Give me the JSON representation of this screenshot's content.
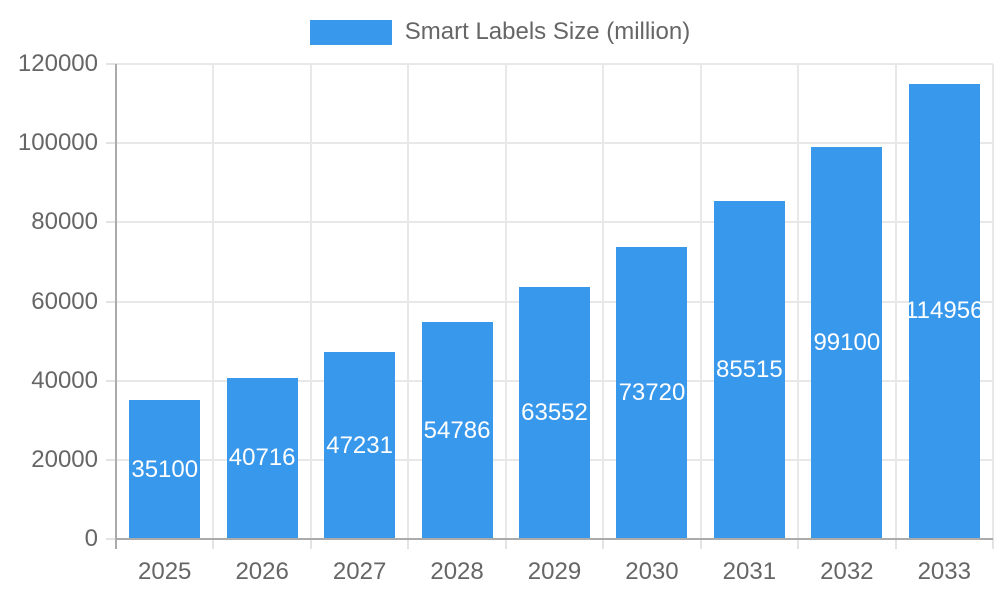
{
  "legend": {
    "label": "Smart Labels Size (million)"
  },
  "colors": {
    "bar": "#3898EC",
    "grid": "#E8E8E8",
    "tick": "#E3E3E3",
    "axis": "#ABABAB",
    "axis_text": "#666666",
    "value_label_text": "#FFFFFF",
    "background": "#FFFFFF"
  },
  "chart_data": {
    "type": "bar",
    "categories": [
      "2025",
      "2026",
      "2027",
      "2028",
      "2029",
      "2030",
      "2031",
      "2032",
      "2033"
    ],
    "series": [
      {
        "name": "Smart Labels Size (million)",
        "values": [
          35100,
          40716,
          47231,
          54786,
          63552,
          73720,
          85515,
          99100,
          114956
        ]
      }
    ],
    "title": "",
    "xlabel": "",
    "ylabel": "",
    "ylim": [
      0,
      120000
    ],
    "yticks": [
      0,
      20000,
      40000,
      60000,
      80000,
      100000,
      120000
    ],
    "ytick_labels": [
      "0",
      "20000",
      "40000",
      "60000",
      "80000",
      "100000",
      "120000"
    ],
    "grid": true,
    "legend_position": "top-center",
    "value_labels_position": "inside-center",
    "bar_labels": [
      "35100",
      "40716",
      "47231",
      "54786",
      "63552",
      "73720",
      "85515",
      "99100",
      "114956"
    ]
  }
}
